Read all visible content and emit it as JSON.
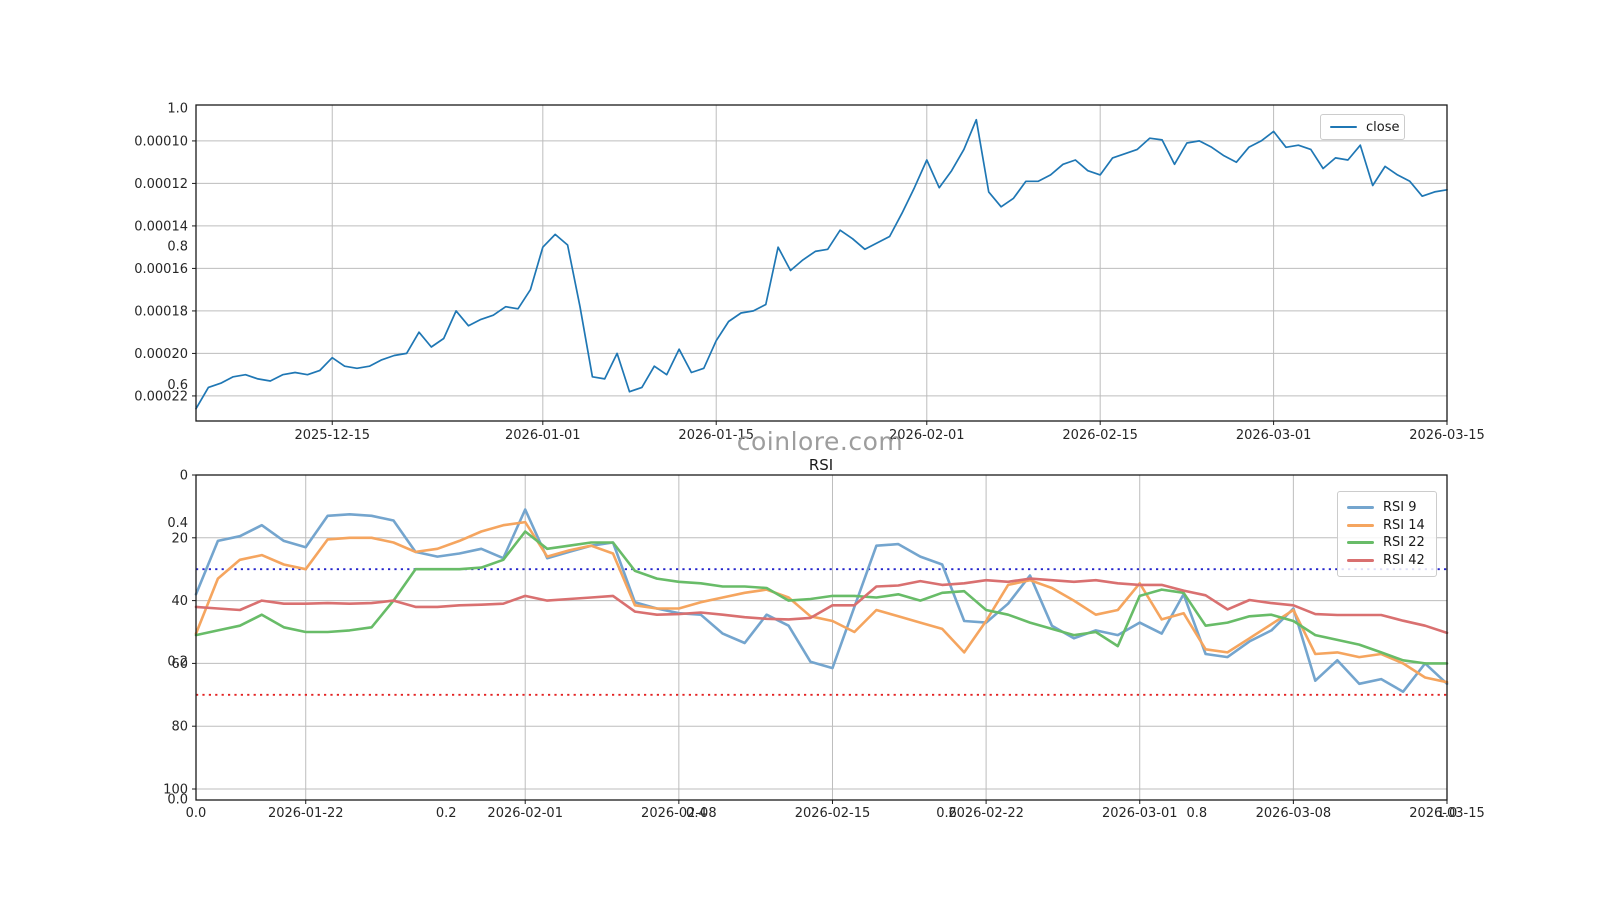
{
  "watermark": "coinlore.com",
  "colors": {
    "close_line": "#1f77b4",
    "grid": "#bdbdbd",
    "spine": "#1a1a1a",
    "tick_label": "#262626",
    "overbought_band": "#fadde0",
    "oversold_band": "#e2e1f7",
    "overbought_line": "#e32222",
    "oversold_line": "#2323cc",
    "watermark_gray": "#8c8c8c"
  },
  "phantom_axis": {
    "ytick_labels": [
      "1.0",
      "0.8",
      "0.6",
      "0.4",
      "0.2",
      "0.0"
    ],
    "xtick_labels": [
      "0.0",
      "0.2",
      "0.4",
      "0.6",
      "0.8",
      "1.0"
    ]
  },
  "chart_data": [
    {
      "type": "line",
      "title": "",
      "xlabel": "",
      "ylabel": "",
      "grid": true,
      "legend_position": "upper right",
      "ylim": [
        8.31e-05,
        0.0002318
      ],
      "yticks": [
        0.0001,
        0.00012,
        0.00014,
        0.00016,
        0.00018,
        0.0002,
        0.00022
      ],
      "ytick_labels": [
        "0.00010",
        "0.00012",
        "0.00014",
        "0.00016",
        "0.00018",
        "0.00020",
        "0.00022"
      ],
      "xtick_labels": [
        "2025-12-15",
        "2026-01-01",
        "2026-01-15",
        "2026-02-01",
        "2026-02-15",
        "2026-03-01",
        "2026-03-15"
      ],
      "xtick_index": [
        11,
        28,
        42,
        59,
        73,
        87,
        101
      ],
      "x": [
        "2025-12-04",
        "2025-12-05",
        "2025-12-06",
        "2025-12-07",
        "2025-12-08",
        "2025-12-09",
        "2025-12-10",
        "2025-12-11",
        "2025-12-12",
        "2025-12-13",
        "2025-12-14",
        "2025-12-15",
        "2025-12-16",
        "2025-12-17",
        "2025-12-18",
        "2025-12-19",
        "2025-12-20",
        "2025-12-21",
        "2025-12-22",
        "2025-12-23",
        "2025-12-24",
        "2025-12-25",
        "2025-12-26",
        "2025-12-27",
        "2025-12-28",
        "2025-12-29",
        "2025-12-30",
        "2025-12-31",
        "2026-01-01",
        "2026-01-02",
        "2026-01-03",
        "2026-01-04",
        "2026-01-05",
        "2026-01-06",
        "2026-01-07",
        "2026-01-08",
        "2026-01-09",
        "2026-01-10",
        "2026-01-11",
        "2026-01-12",
        "2026-01-13",
        "2026-01-14",
        "2026-01-15",
        "2026-01-16",
        "2026-01-17",
        "2026-01-18",
        "2026-01-19",
        "2026-01-20",
        "2026-01-21",
        "2026-01-22",
        "2026-01-23",
        "2026-01-24",
        "2026-01-25",
        "2026-01-26",
        "2026-01-27",
        "2026-01-28",
        "2026-01-29",
        "2026-01-30",
        "2026-01-31",
        "2026-02-01",
        "2026-02-02",
        "2026-02-03",
        "2026-02-04",
        "2026-02-05",
        "2026-02-06",
        "2026-02-07",
        "2026-02-08",
        "2026-02-09",
        "2026-02-10",
        "2026-02-11",
        "2026-02-12",
        "2026-02-13",
        "2026-02-14",
        "2026-02-15",
        "2026-02-16",
        "2026-02-17",
        "2026-02-18",
        "2026-02-19",
        "2026-02-20",
        "2026-02-21",
        "2026-02-22",
        "2026-02-23",
        "2026-02-24",
        "2026-02-25",
        "2026-02-26",
        "2026-02-27",
        "2026-02-28",
        "2026-03-01",
        "2026-03-02",
        "2026-03-03",
        "2026-03-04",
        "2026-03-05",
        "2026-03-06",
        "2026-03-07",
        "2026-03-08",
        "2026-03-09",
        "2026-03-10",
        "2026-03-11",
        "2026-03-12",
        "2026-03-13",
        "2026-03-14",
        "2026-03-15"
      ],
      "series": [
        {
          "name": "close",
          "color": "#1f77b4",
          "values": [
            0.000226,
            0.000216,
            0.000214,
            0.000211,
            0.00021,
            0.000212,
            0.000213,
            0.00021,
            0.000209,
            0.00021,
            0.000208,
            0.000202,
            0.000206,
            0.000207,
            0.000206,
            0.000203,
            0.000201,
            0.0002,
            0.00019,
            0.000197,
            0.000193,
            0.00018,
            0.000187,
            0.000184,
            0.000182,
            0.000178,
            0.000179,
            0.00017,
            0.00015,
            0.000144,
            0.000149,
            0.000178,
            0.000211,
            0.000212,
            0.0002,
            0.000218,
            0.000216,
            0.000206,
            0.00021,
            0.000198,
            0.000209,
            0.000207,
            0.000194,
            0.000185,
            0.000181,
            0.00018,
            0.000177,
            0.00015,
            0.000161,
            0.000156,
            0.000152,
            0.000151,
            0.000142,
            0.000146,
            0.000151,
            0.000148,
            0.000145,
            0.000134,
            0.000122,
            0.000109,
            0.000122,
            0.000114,
            0.000104,
            9e-05,
            0.000124,
            0.000131,
            0.000127,
            0.000119,
            0.000119,
            0.000116,
            0.000111,
            0.000109,
            0.000114,
            0.000116,
            0.000108,
            0.000106,
            0.000104,
            9.87e-05,
            9.95e-05,
            0.000111,
            0.000101,
            0.0001,
            0.000103,
            0.000107,
            0.00011,
            0.000103,
            0.0001,
            9.55e-05,
            0.000103,
            0.000102,
            0.000104,
            0.000113,
            0.000108,
            0.000109,
            0.000102,
            0.000121,
            0.000112,
            0.000116,
            0.000119,
            0.000126,
            0.000124,
            0.000123
          ]
        }
      ]
    },
    {
      "type": "line",
      "title": "RSI",
      "xlabel": "",
      "ylabel": "",
      "grid": true,
      "legend_position": "upper right",
      "ylim": [
        0,
        103.5
      ],
      "yticks": [
        0,
        20,
        40,
        60,
        80,
        100
      ],
      "ytick_labels": [
        "0",
        "20",
        "40",
        "60",
        "80",
        "100"
      ],
      "xtick_labels": [
        "2026-01-22",
        "2026-02-01",
        "2026-02-08",
        "2026-02-15",
        "2026-02-22",
        "2026-03-01",
        "2026-03-08",
        "2026-03-15"
      ],
      "xtick_index": [
        5,
        15,
        22,
        29,
        36,
        43,
        50,
        57
      ],
      "overbought_level": 70,
      "oversold_level": 30,
      "bands": [
        {
          "from": 70,
          "to": 100,
          "color": "#fadde0"
        },
        {
          "from": 0,
          "to": 30,
          "color": "#e2e1f7"
        }
      ],
      "ref_lines": [
        {
          "value": 70,
          "color": "#e32222",
          "style": "dotted"
        },
        {
          "value": 30,
          "color": "#2323cc",
          "style": "dotted"
        }
      ],
      "x": [
        "2026-01-17",
        "2026-01-18",
        "2026-01-19",
        "2026-01-20",
        "2026-01-21",
        "2026-01-22",
        "2026-01-23",
        "2026-01-24",
        "2026-01-25",
        "2026-01-26",
        "2026-01-27",
        "2026-01-28",
        "2026-01-29",
        "2026-01-30",
        "2026-01-31",
        "2026-02-01",
        "2026-02-02",
        "2026-02-03",
        "2026-02-04",
        "2026-02-05",
        "2026-02-06",
        "2026-02-07",
        "2026-02-08",
        "2026-02-09",
        "2026-02-10",
        "2026-02-11",
        "2026-02-12",
        "2026-02-13",
        "2026-02-14",
        "2026-02-15",
        "2026-02-16",
        "2026-02-17",
        "2026-02-18",
        "2026-02-19",
        "2026-02-20",
        "2026-02-21",
        "2026-02-22",
        "2026-02-23",
        "2026-02-24",
        "2026-02-25",
        "2026-02-26",
        "2026-02-27",
        "2026-02-28",
        "2026-03-01",
        "2026-03-02",
        "2026-03-03",
        "2026-03-04",
        "2026-03-05",
        "2026-03-06",
        "2026-03-07",
        "2026-03-08",
        "2026-03-09",
        "2026-03-10",
        "2026-03-11",
        "2026-03-12",
        "2026-03-13",
        "2026-03-14",
        "2026-03-15"
      ],
      "series": [
        {
          "name": "RSI 9",
          "color": "#74a5ce",
          "values": [
            38,
            21,
            19.5,
            16,
            21,
            23,
            13,
            12.5,
            13,
            14.5,
            24.5,
            26,
            25,
            23.5,
            26.5,
            11,
            26.5,
            24.5,
            22.5,
            21.5,
            40.5,
            42.5,
            44,
            44.5,
            50.5,
            53.5,
            44.5,
            48,
            59.5,
            61.5,
            42,
            22.5,
            22,
            26,
            28.5,
            46.5,
            47,
            41,
            32,
            48,
            52,
            49.5,
            51,
            47,
            50.5,
            38,
            57,
            58,
            53,
            49.5,
            42.5,
            65.5,
            59,
            66.5,
            65,
            69,
            60,
            66.5
          ]
        },
        {
          "name": "RSI 14",
          "color": "#f5a55f",
          "values": [
            50.5,
            33,
            27,
            25.5,
            28.5,
            30,
            20.5,
            20,
            20,
            21.5,
            24.5,
            23.5,
            21,
            18,
            16,
            15,
            26,
            24,
            22.5,
            25,
            41.5,
            42.5,
            42.5,
            40.5,
            39,
            37.5,
            36.5,
            39,
            45,
            46.5,
            50,
            43,
            45,
            47,
            49,
            56.5,
            46.5,
            35,
            33.5,
            36,
            40,
            44.5,
            43,
            34.5,
            46,
            44,
            55.5,
            56.5,
            52,
            47.5,
            43,
            57,
            56.5,
            58,
            57,
            60,
            64.5,
            66
          ]
        },
        {
          "name": "RSI 22",
          "color": "#68bc68",
          "values": [
            51,
            49.5,
            48,
            44.5,
            48.5,
            50,
            50,
            49.5,
            48.5,
            40,
            30,
            30,
            30,
            29.5,
            27,
            18,
            23.5,
            22.5,
            21.5,
            21.5,
            30.5,
            33,
            34,
            34.5,
            35.5,
            35.5,
            36,
            40,
            39.5,
            38.5,
            38.5,
            39,
            38,
            40,
            37.5,
            37,
            43,
            44.5,
            47,
            49,
            51,
            50,
            54.5,
            38.5,
            36.5,
            37.5,
            48,
            47,
            45,
            44.5,
            46.5,
            51,
            52.5,
            54,
            56.5,
            59,
            60,
            60
          ]
        },
        {
          "name": "RSI 42",
          "color": "#d97070",
          "values": [
            42,
            42.5,
            43,
            40,
            41,
            41,
            40.8,
            41,
            40.8,
            40,
            42,
            42,
            41.5,
            41.3,
            41,
            38.5,
            40,
            39.5,
            39,
            38.5,
            43.5,
            44.5,
            44.3,
            43.8,
            44.5,
            45.3,
            45.8,
            46,
            45.5,
            41.5,
            41.5,
            35.5,
            35.2,
            33.8,
            35,
            34.5,
            33.5,
            34,
            33,
            33.5,
            34,
            33.5,
            34.5,
            35,
            35,
            36.8,
            38.3,
            42.8,
            39.8,
            40.8,
            41.5,
            44.3,
            44.6,
            44.6,
            44.6,
            46.4,
            48,
            50.3
          ]
        }
      ]
    }
  ]
}
